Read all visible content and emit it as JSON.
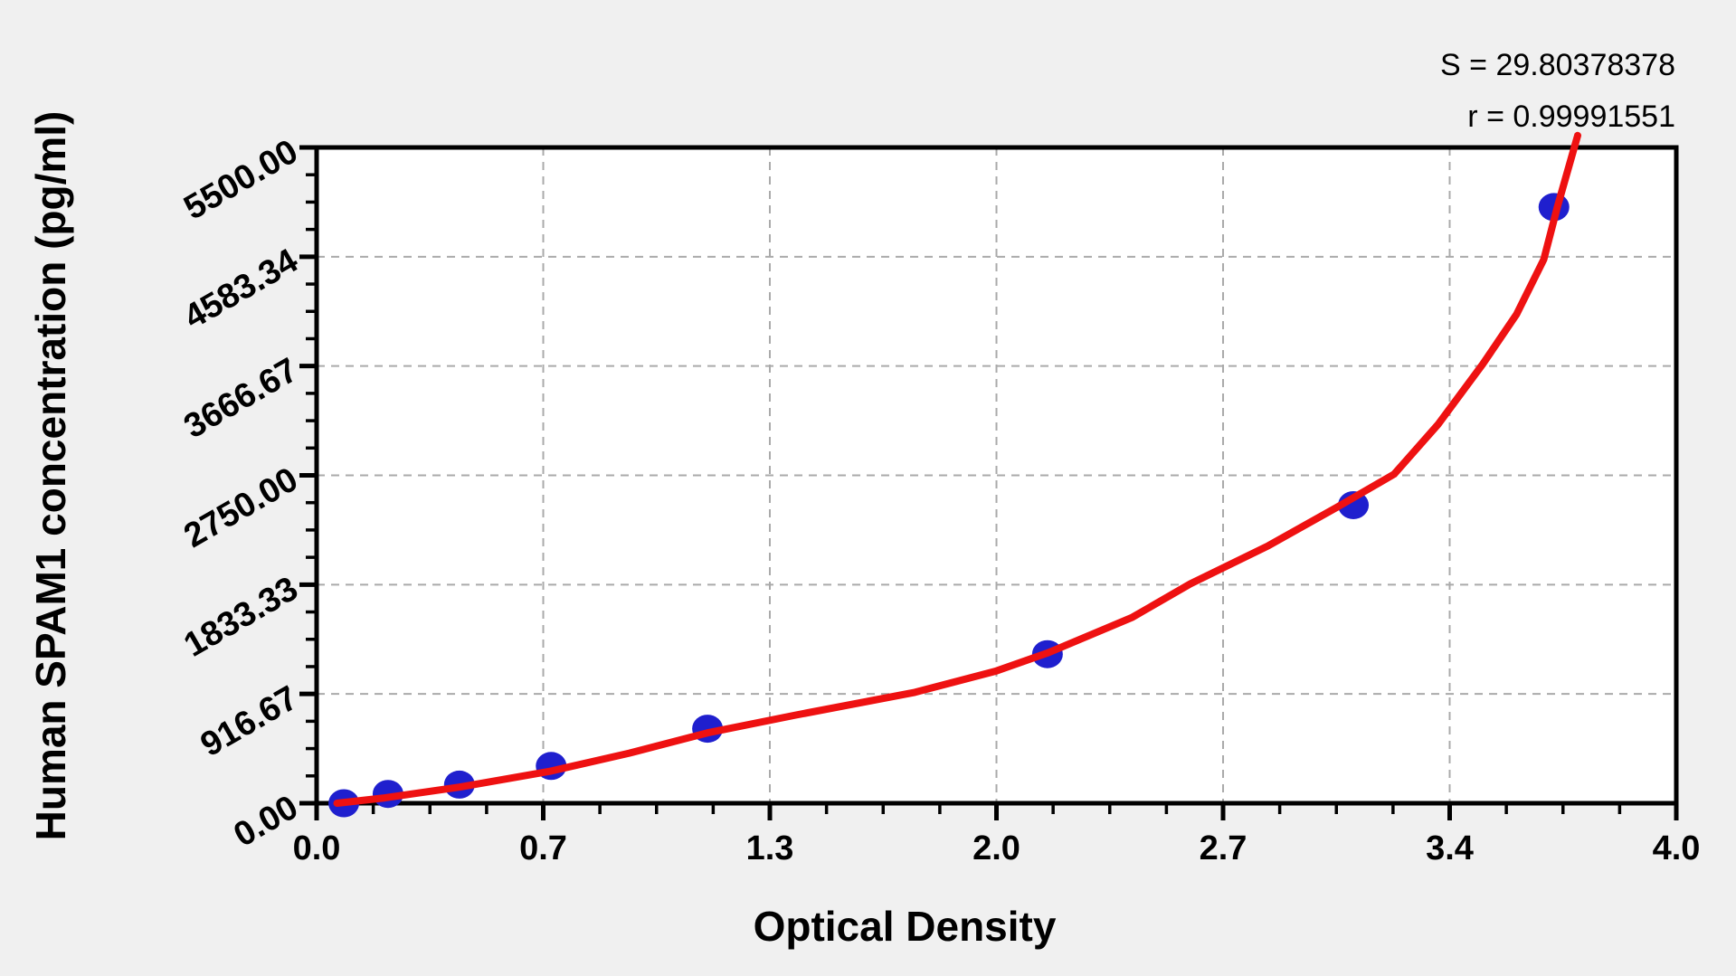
{
  "chart_data": {
    "type": "scatter",
    "title": "",
    "xlabel": "Optical Density",
    "ylabel": "Human SPAM1 concentration (pg/ml)",
    "xlim": [
      0,
      4.0
    ],
    "ylim": [
      0,
      5500
    ],
    "x_tick_labels": [
      "0.0",
      "0.7",
      "1.3",
      "2.0",
      "2.7",
      "3.4",
      "4.0"
    ],
    "x_tick_values": [
      0,
      0.6667,
      1.3333,
      2.0,
      2.6667,
      3.3333,
      4.0
    ],
    "y_tick_labels": [
      "0.00",
      "916.67",
      "1833.33",
      "2750.00",
      "3666.67",
      "4583.34",
      "5500.00"
    ],
    "y_tick_values": [
      0,
      916.67,
      1833.33,
      2750.0,
      3666.67,
      4583.34,
      5500.0
    ],
    "minor_ticks_per_interval": 3,
    "grid": "dashed-major",
    "legend": "none",
    "annotations": [
      "S = 29.80378378",
      "r = 0.99991551"
    ],
    "series": [
      {
        "name": "standard-points",
        "type": "scatter",
        "color": "#1f1fce",
        "points": [
          [
            0.08,
            0
          ],
          [
            0.21,
            78.1
          ],
          [
            0.42,
            156.3
          ],
          [
            0.69,
            312.5
          ],
          [
            1.15,
            625
          ],
          [
            2.15,
            1250
          ],
          [
            3.05,
            2500
          ],
          [
            3.64,
            5000
          ]
        ]
      },
      {
        "name": "fitted-curve",
        "type": "line",
        "color": "#ee1111",
        "points": [
          [
            0.06,
            0
          ],
          [
            0.2,
            45
          ],
          [
            0.42,
            135
          ],
          [
            0.69,
            270
          ],
          [
            0.92,
            420
          ],
          [
            1.15,
            590
          ],
          [
            1.41,
            740
          ],
          [
            1.76,
            930
          ],
          [
            2.0,
            1110
          ],
          [
            2.15,
            1260
          ],
          [
            2.4,
            1560
          ],
          [
            2.57,
            1840
          ],
          [
            2.8,
            2160
          ],
          [
            3.0,
            2480
          ],
          [
            3.17,
            2760
          ],
          [
            3.3,
            3180
          ],
          [
            3.43,
            3680
          ],
          [
            3.53,
            4100
          ],
          [
            3.61,
            4560
          ],
          [
            3.65,
            5000
          ],
          [
            3.71,
            5600
          ]
        ]
      }
    ]
  },
  "colors": {
    "background": "#f0f0f0",
    "plot_background": "#ffffff",
    "axis": "#000000",
    "grid": "#aaaaaa",
    "curve": "#ee1111",
    "points": "#1f1fce"
  }
}
